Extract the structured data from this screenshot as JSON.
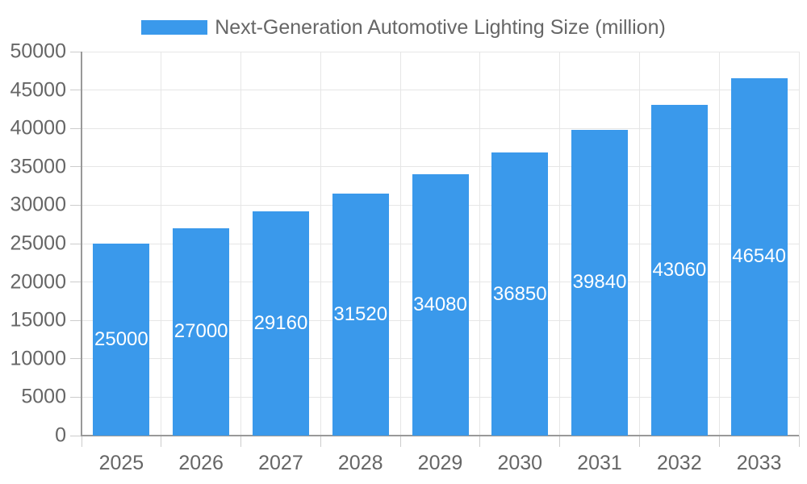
{
  "chart_data": {
    "type": "bar",
    "title": "Next-Generation Automotive Lighting Size (million)",
    "legend": {
      "label": "Next-Generation Automotive Lighting Size (million)",
      "position": "top"
    },
    "categories": [
      "2025",
      "2026",
      "2027",
      "2028",
      "2029",
      "2030",
      "2031",
      "2032",
      "2033"
    ],
    "series": [
      {
        "name": "Next-Generation Automotive Lighting Size (million)",
        "values": [
          25000,
          27000,
          29160,
          31520,
          34080,
          36850,
          39840,
          43060,
          46540
        ]
      }
    ],
    "data_labels": [
      "25000",
      "27000",
      "29160",
      "31520",
      "34080",
      "36850",
      "39840",
      "43060",
      "46540"
    ],
    "xlabel": "",
    "ylabel": "",
    "ylim": [
      0,
      50000
    ],
    "yticks": [
      0,
      5000,
      10000,
      15000,
      20000,
      25000,
      30000,
      35000,
      40000,
      45000,
      50000
    ],
    "grid": true
  },
  "colors": {
    "bar_fill": "#3a99eb",
    "value_label_text": "#ffffff",
    "axis_text": "#666666",
    "axis_line": "#999999",
    "grid_line": "#e6e6e6",
    "tick_line": "#cccccc",
    "background": "#ffffff"
  }
}
